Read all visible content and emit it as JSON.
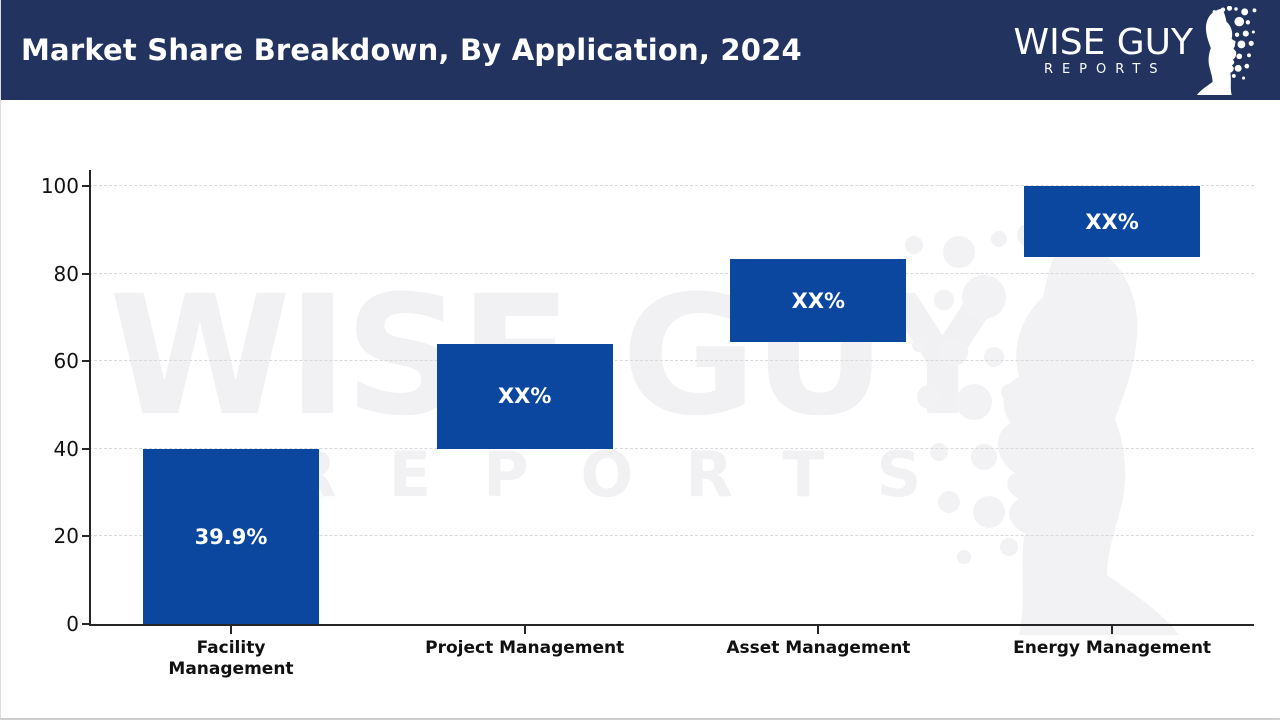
{
  "header": {
    "title": "Market Share Breakdown, By Application, 2024",
    "bg_color": "#21335e"
  },
  "brand": {
    "wordmark": "WISE GUY",
    "subtext": "REPORTS",
    "head_icon": "dotted-head-profile-icon"
  },
  "watermark": {
    "wordmark": "WISE GUY",
    "subtext": "REPORTS"
  },
  "chart_data": {
    "type": "bar",
    "variant": "waterfall",
    "title": "Market Share Breakdown, By Application, 2024",
    "categories": [
      "Facility Management",
      "Project Management",
      "Asset Management",
      "Energy Management"
    ],
    "x_tick_lines": [
      [
        "Facility",
        "Management"
      ],
      [
        "Project Management"
      ],
      [
        "Asset Management"
      ],
      [
        "Energy Management"
      ]
    ],
    "segments": [
      {
        "category": "Facility Management",
        "start": 0,
        "end": 39.9,
        "label": "39.9%"
      },
      {
        "category": "Project Management",
        "start": 40.0,
        "end": 64.0,
        "label": "XX%"
      },
      {
        "category": "Asset Management",
        "start": 64.3,
        "end": 83.3,
        "label": "XX%"
      },
      {
        "category": "Energy Management",
        "start": 83.7,
        "end": 100.0,
        "label": "XX%"
      }
    ],
    "ylim": [
      0,
      100
    ],
    "yticks": [
      0,
      20,
      40,
      60,
      80,
      100
    ],
    "grid": {
      "axis": "y",
      "style": "dashed",
      "color": "#d9d9d9"
    },
    "bar_color": "#0b479f",
    "bar_label_color": "#ffffff",
    "axis_color": "#262626",
    "tick_label_color": "#111111",
    "legend": "none"
  }
}
